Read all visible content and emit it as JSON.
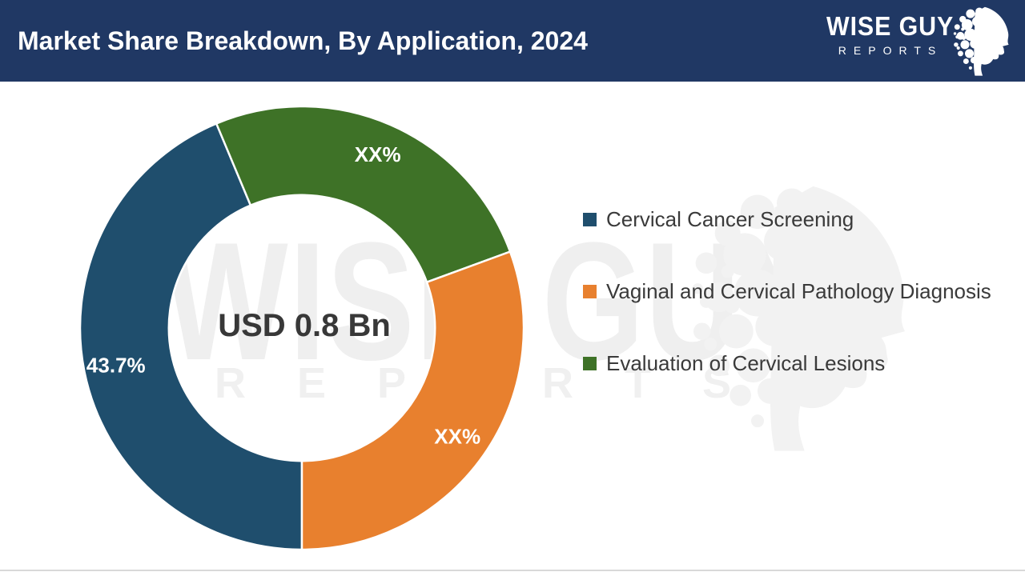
{
  "header": {
    "title": "Market Share Breakdown, By Application, 2024",
    "logo_line1": "WISE GUY",
    "logo_line2": "REPORTS",
    "bg_color": "#203864"
  },
  "chart_data": {
    "type": "pie",
    "subtype": "donut",
    "title": "Market Share Breakdown, By Application, 2024",
    "center_label": "USD 0.8 Bn",
    "start_angle_deg": 180,
    "direction": "clockwise",
    "draw_order": [
      0,
      2,
      1
    ],
    "inner_radius_ratio": 0.6,
    "label_radius_ratio": 0.855,
    "legend_position": "right",
    "slices": [
      {
        "name": "Cervical Cancer Screening",
        "value": 43.7,
        "label": "43.7%",
        "color": "#1f4e6d"
      },
      {
        "name": "Vaginal and Cervical Pathology Diagnosis",
        "value": 30.6,
        "label": "XX%",
        "color": "#e8802e"
      },
      {
        "name": "Evaluation of Cervical Lesions",
        "value": 25.7,
        "label": "XX%",
        "color": "#3e7227"
      }
    ]
  },
  "watermark": {
    "line1": "WISE GUY",
    "line2": "REPORTS"
  },
  "colors": {
    "header_bg": "#203864",
    "center_text": "#383838",
    "legend_text": "#3a3a3a",
    "divider": "#d9d9d9",
    "watermark": "#f0f0f0",
    "slice_border": "#ffffff"
  }
}
